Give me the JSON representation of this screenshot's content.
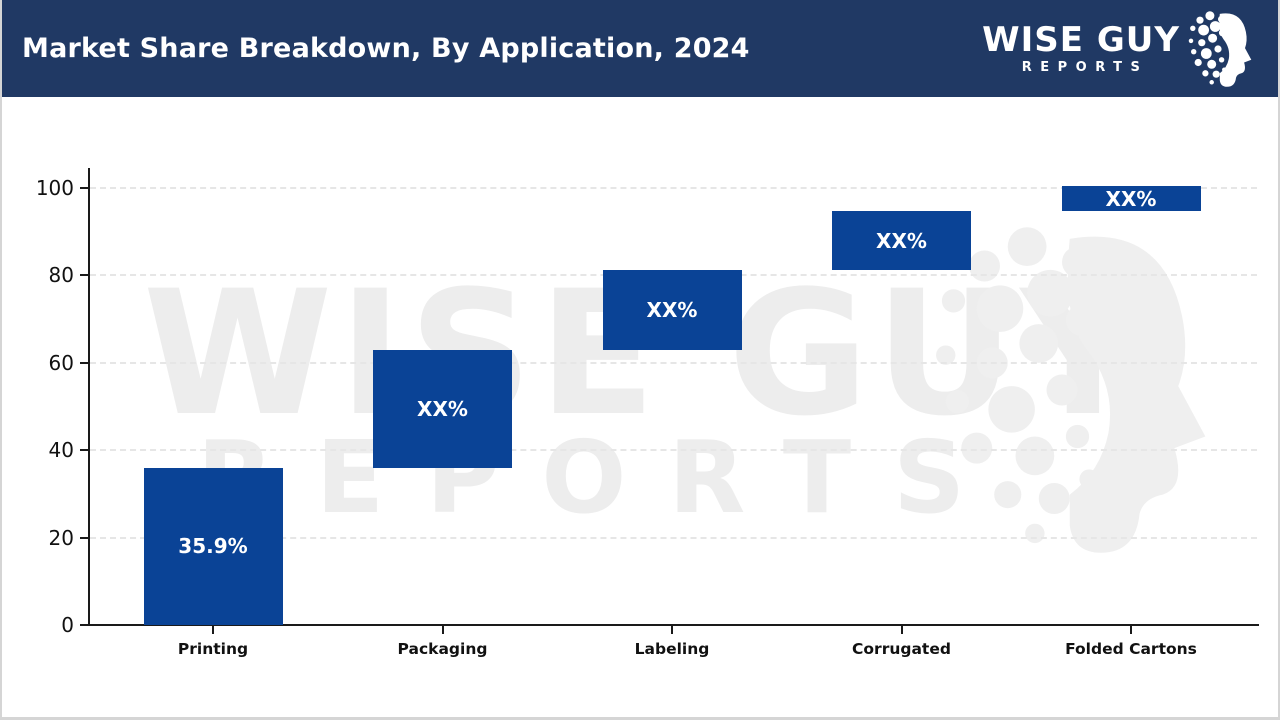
{
  "header": {
    "title": "Market Share Breakdown, By Application, 2024",
    "logo": {
      "line1": "WISE GUY",
      "line2": "REPORTS"
    }
  },
  "watermark": {
    "line1": "WISE GUY",
    "line2": "REPORTS"
  },
  "chart_data": {
    "type": "bar",
    "subtype": "waterfall",
    "title": "Market Share Breakdown, By Application, 2024",
    "xlabel": "",
    "ylabel": "",
    "categories": [
      "Printing",
      "Packaging",
      "Labeling",
      "Corrugated",
      "Folded Cartons"
    ],
    "bars": [
      {
        "category": "Printing",
        "label": "35.9%",
        "start": 0,
        "end": 35.9,
        "value_estimate": 35.9
      },
      {
        "category": "Packaging",
        "label": "XX%",
        "start": 35.9,
        "end": 62.9,
        "value_estimate": 27.0
      },
      {
        "category": "Labeling",
        "label": "XX%",
        "start": 62.9,
        "end": 81.1,
        "value_estimate": 18.2
      },
      {
        "category": "Corrugated",
        "label": "XX%",
        "start": 81.1,
        "end": 94.6,
        "value_estimate": 13.5
      },
      {
        "category": "Folded Cartons",
        "label": "XX%",
        "start": 94.6,
        "end": 100.3,
        "value_estimate": 5.7
      }
    ],
    "yticks": [
      0,
      20,
      40,
      60,
      80,
      100
    ],
    "ylim": [
      0,
      105
    ],
    "grid": "horizontal-dashed",
    "legend": "none",
    "bar_color": "#0a4396",
    "label_color": "#ffffff",
    "axis_color": "#1a1a1a",
    "gridline_color": "#e6e6e6",
    "header_color": "#203964"
  }
}
